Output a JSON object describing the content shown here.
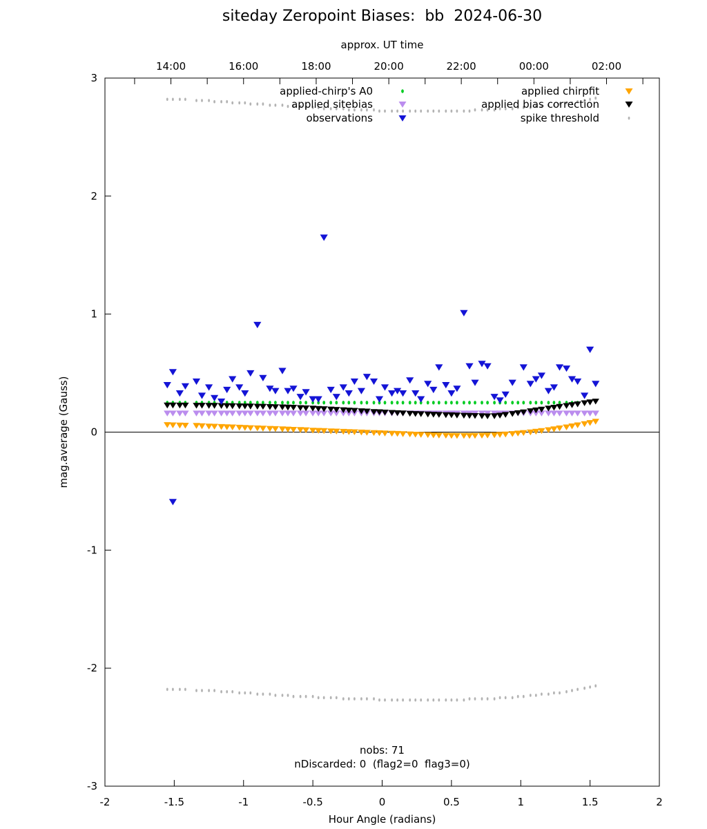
{
  "title": "siteday Zeropoint Biases:  bb  2024-06-30",
  "annotations": [
    "nobs: 71",
    "nDiscarded: 0  (flag2=0  flag3=0)"
  ],
  "legend": {
    "left": [
      {
        "label": "applied-chirp's A0",
        "marker": "dot",
        "color": "#00cc22"
      },
      {
        "label": "applied sitebias",
        "marker": "triangle",
        "color": "#bb8dee"
      },
      {
        "label": "observations",
        "marker": "triangle",
        "color": "#1414d6"
      }
    ],
    "right": [
      {
        "label": "applied chirpfit",
        "marker": "triangle",
        "color": "#ffa500"
      },
      {
        "label": "applied bias correction",
        "marker": "triangle",
        "color": "#000000"
      },
      {
        "label": "spike threshold",
        "marker": "smalldot",
        "color": "#b3b3b3"
      }
    ]
  },
  "chart_data": {
    "type": "scatter",
    "title": "siteday Zeropoint Biases:  bb  2024-06-30",
    "xlabel": "Hour Angle (radians)",
    "ylabel": "mag.average (Gauss)",
    "x2label": "approx. UT time",
    "xlim": [
      -2,
      2
    ],
    "ylim": [
      -3,
      3
    ],
    "grid": false,
    "x_ticks": [
      -2,
      -1.5,
      -1,
      -0.5,
      0,
      0.5,
      1,
      1.5,
      2
    ],
    "x_tick_labels": [
      "-2",
      "-1.5",
      "-1",
      "-0.5",
      "0",
      "0.5",
      "1",
      "1.5",
      "2"
    ],
    "y_ticks": [
      -3,
      -2,
      -1,
      0,
      1,
      2,
      3
    ],
    "x2_ticks": {
      "labels": [
        "14:00",
        "16:00",
        "18:00",
        "20:00",
        "22:00",
        "00:00",
        "02:00"
      ],
      "positions": [
        -1.524,
        -1.0,
        -0.476,
        0.048,
        0.571,
        1.095,
        1.619
      ],
      "minor_positions": [
        -1.786,
        -1.262,
        -0.738,
        -0.214,
        0.31,
        0.833,
        1.357,
        1.881
      ]
    },
    "zero_line": 0,
    "band_x": [
      -1.55,
      -1.51,
      -1.46,
      -1.42,
      -1.34,
      -1.3,
      -1.25,
      -1.21,
      -1.16,
      -1.12,
      -1.08,
      -1.03,
      -0.99,
      -0.95,
      -0.9,
      -0.86,
      -0.81,
      -0.77,
      -0.72,
      -0.68,
      -0.64,
      -0.59,
      -0.55,
      -0.5,
      -0.46,
      -0.42,
      -0.37,
      -0.33,
      -0.28,
      -0.24,
      -0.2,
      -0.15,
      -0.11,
      -0.06,
      -0.02,
      0.02,
      0.07,
      0.11,
      0.15,
      0.2,
      0.24,
      0.28,
      0.33,
      0.37,
      0.41,
      0.46,
      0.5,
      0.54,
      0.59,
      0.63,
      0.67,
      0.72,
      0.76,
      0.81,
      0.85,
      0.89,
      0.94,
      0.98,
      1.02,
      1.07,
      1.11,
      1.15,
      1.2,
      1.24,
      1.28,
      1.33,
      1.37,
      1.41,
      1.46,
      1.5,
      1.54
    ],
    "series": [
      {
        "name": "spike threshold",
        "marker": "smalldot",
        "color": "#b3b3b3",
        "y_upper": [
          2.82,
          2.82,
          2.82,
          2.82,
          2.81,
          2.81,
          2.81,
          2.8,
          2.8,
          2.8,
          2.79,
          2.79,
          2.79,
          2.78,
          2.78,
          2.78,
          2.77,
          2.77,
          2.77,
          2.76,
          2.76,
          2.76,
          2.75,
          2.75,
          2.75,
          2.74,
          2.74,
          2.74,
          2.74,
          2.73,
          2.73,
          2.73,
          2.73,
          2.73,
          2.72,
          2.72,
          2.72,
          2.72,
          2.72,
          2.72,
          2.72,
          2.72,
          2.72,
          2.72,
          2.72,
          2.72,
          2.72,
          2.72,
          2.72,
          2.72,
          2.73,
          2.73,
          2.73,
          2.73,
          2.74,
          2.74,
          2.74,
          2.75,
          2.75,
          2.75,
          2.76,
          2.76,
          2.77,
          2.77,
          2.78,
          2.79,
          2.79,
          2.8,
          2.81,
          2.82,
          2.83
        ],
        "y_lower": [
          -2.18,
          -2.18,
          -2.18,
          -2.18,
          -2.19,
          -2.19,
          -2.19,
          -2.19,
          -2.2,
          -2.2,
          -2.2,
          -2.21,
          -2.21,
          -2.21,
          -2.22,
          -2.22,
          -2.22,
          -2.23,
          -2.23,
          -2.23,
          -2.24,
          -2.24,
          -2.24,
          -2.24,
          -2.25,
          -2.25,
          -2.25,
          -2.25,
          -2.26,
          -2.26,
          -2.26,
          -2.26,
          -2.26,
          -2.26,
          -2.27,
          -2.27,
          -2.27,
          -2.27,
          -2.27,
          -2.27,
          -2.27,
          -2.27,
          -2.27,
          -2.27,
          -2.27,
          -2.27,
          -2.27,
          -2.27,
          -2.27,
          -2.26,
          -2.26,
          -2.26,
          -2.26,
          -2.26,
          -2.25,
          -2.25,
          -2.25,
          -2.24,
          -2.24,
          -2.23,
          -2.23,
          -2.22,
          -2.22,
          -2.21,
          -2.21,
          -2.2,
          -2.19,
          -2.18,
          -2.17,
          -2.16,
          -2.15
        ]
      },
      {
        "name": "applied chirpfit",
        "marker": "triangle",
        "color": "#ffa500",
        "y": [
          0.062,
          0.06,
          0.058,
          0.057,
          0.055,
          0.052,
          0.05,
          0.048,
          0.046,
          0.044,
          0.042,
          0.04,
          0.038,
          0.036,
          0.034,
          0.032,
          0.03,
          0.028,
          0.026,
          0.024,
          0.022,
          0.02,
          0.018,
          0.015,
          0.013,
          0.011,
          0.009,
          0.007,
          0.005,
          0.003,
          0.001,
          -0.001,
          -0.003,
          -0.005,
          -0.007,
          -0.009,
          -0.011,
          -0.013,
          -0.015,
          -0.017,
          -0.019,
          -0.021,
          -0.023,
          -0.025,
          -0.027,
          -0.028,
          -0.029,
          -0.03,
          -0.03,
          -0.03,
          -0.029,
          -0.028,
          -0.026,
          -0.024,
          -0.021,
          -0.018,
          -0.014,
          -0.01,
          -0.005,
          0.0,
          0.006,
          0.012,
          0.019,
          0.026,
          0.034,
          0.042,
          0.051,
          0.06,
          0.07,
          0.08,
          0.091
        ]
      },
      {
        "name": "applied sitebias",
        "marker": "triangle",
        "color": "#bb8dee",
        "y_const": 0.16,
        "x_max": 1.58
      },
      {
        "name": "applied-chirp's A0",
        "marker": "dot",
        "color": "#00cc22",
        "y_const": 0.25,
        "x_max": 1.43
      },
      {
        "name": "applied bias correction",
        "marker": "triangle",
        "color": "#000000",
        "y": [
          0.228,
          0.228,
          0.227,
          0.227,
          0.226,
          0.226,
          0.225,
          0.225,
          0.224,
          0.223,
          0.222,
          0.221,
          0.22,
          0.219,
          0.218,
          0.217,
          0.215,
          0.214,
          0.212,
          0.21,
          0.209,
          0.206,
          0.204,
          0.202,
          0.199,
          0.197,
          0.194,
          0.191,
          0.188,
          0.185,
          0.183,
          0.179,
          0.177,
          0.173,
          0.171,
          0.168,
          0.165,
          0.163,
          0.161,
          0.158,
          0.156,
          0.154,
          0.152,
          0.15,
          0.148,
          0.146,
          0.145,
          0.143,
          0.141,
          0.14,
          0.139,
          0.137,
          0.136,
          0.137,
          0.142,
          0.148,
          0.156,
          0.163,
          0.17,
          0.179,
          0.186,
          0.193,
          0.202,
          0.209,
          0.216,
          0.224,
          0.231,
          0.238,
          0.247,
          0.254,
          0.261
        ]
      },
      {
        "name": "observations",
        "marker": "triangle",
        "color": "#1414d6",
        "points": [
          [
            -1.55,
            0.4
          ],
          [
            -1.51,
            0.51
          ],
          [
            -1.46,
            0.33
          ],
          [
            -1.42,
            0.39
          ],
          [
            -1.51,
            -0.59
          ],
          [
            -1.34,
            0.43
          ],
          [
            -1.3,
            0.31
          ],
          [
            -1.25,
            0.38
          ],
          [
            -1.21,
            0.29
          ],
          [
            -1.16,
            0.26
          ],
          [
            -1.12,
            0.36
          ],
          [
            -1.08,
            0.45
          ],
          [
            -1.03,
            0.38
          ],
          [
            -0.99,
            0.33
          ],
          [
            -0.95,
            0.5
          ],
          [
            -0.9,
            0.91
          ],
          [
            -0.86,
            0.46
          ],
          [
            -0.81,
            0.37
          ],
          [
            -0.77,
            0.35
          ],
          [
            -0.72,
            0.52
          ],
          [
            -0.68,
            0.35
          ],
          [
            -0.64,
            0.37
          ],
          [
            -0.59,
            0.3
          ],
          [
            -0.55,
            0.34
          ],
          [
            -0.5,
            0.28
          ],
          [
            -0.46,
            0.28
          ],
          [
            -0.42,
            1.65
          ],
          [
            -0.37,
            0.36
          ],
          [
            -0.33,
            0.3
          ],
          [
            -0.28,
            0.38
          ],
          [
            -0.24,
            0.33
          ],
          [
            -0.2,
            0.43
          ],
          [
            -0.15,
            0.35
          ],
          [
            -0.11,
            0.47
          ],
          [
            -0.06,
            0.43
          ],
          [
            -0.02,
            0.28
          ],
          [
            0.02,
            0.38
          ],
          [
            0.07,
            0.33
          ],
          [
            0.11,
            0.35
          ],
          [
            0.15,
            0.33
          ],
          [
            0.2,
            0.44
          ],
          [
            0.24,
            0.33
          ],
          [
            0.28,
            0.28
          ],
          [
            0.33,
            0.41
          ],
          [
            0.37,
            0.36
          ],
          [
            0.41,
            0.55
          ],
          [
            0.46,
            0.4
          ],
          [
            0.5,
            0.33
          ],
          [
            0.54,
            0.37
          ],
          [
            0.59,
            1.01
          ],
          [
            0.63,
            0.56
          ],
          [
            0.67,
            0.42
          ],
          [
            0.72,
            0.58
          ],
          [
            0.76,
            0.56
          ],
          [
            0.81,
            0.3
          ],
          [
            0.85,
            0.27
          ],
          [
            0.89,
            0.32
          ],
          [
            0.94,
            0.42
          ],
          [
            1.02,
            0.55
          ],
          [
            1.07,
            0.41
          ],
          [
            1.11,
            0.45
          ],
          [
            1.15,
            0.48
          ],
          [
            1.2,
            0.35
          ],
          [
            1.24,
            0.38
          ],
          [
            1.28,
            0.55
          ],
          [
            1.33,
            0.54
          ],
          [
            1.37,
            0.45
          ],
          [
            1.41,
            0.43
          ],
          [
            1.46,
            0.31
          ],
          [
            1.5,
            0.7
          ],
          [
            1.54,
            0.41
          ]
        ]
      }
    ],
    "stats": {
      "nobs": 71,
      "nDiscarded": 0,
      "flag2": 0,
      "flag3": 0
    }
  }
}
